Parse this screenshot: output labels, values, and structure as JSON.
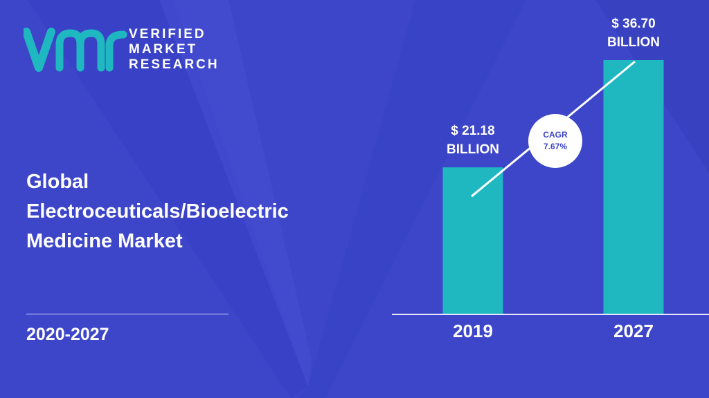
{
  "brand": {
    "lines": [
      "VERIFIED",
      "MARKET",
      "RESEARCH"
    ],
    "colors": {
      "teal": "#1fb8c1",
      "background": "#3d46c9",
      "text": "#ffffff"
    }
  },
  "title_lines": [
    "Global",
    "Electroceuticals/Bioelectric",
    "Medicine Market"
  ],
  "period": "2020-2027",
  "chart_data": {
    "type": "bar",
    "categories": [
      "2019",
      "2027"
    ],
    "values": [
      21.18,
      36.7
    ],
    "value_labels": [
      [
        "$ 21.18",
        "BILLION"
      ],
      [
        "$ 36.70",
        "BILLION"
      ]
    ],
    "annotation": [
      "CAGR",
      "7.67%"
    ],
    "bar_color": "#1fb8c1",
    "title": "",
    "xlabel": "",
    "ylabel": "",
    "ylim": [
      0,
      40
    ]
  }
}
